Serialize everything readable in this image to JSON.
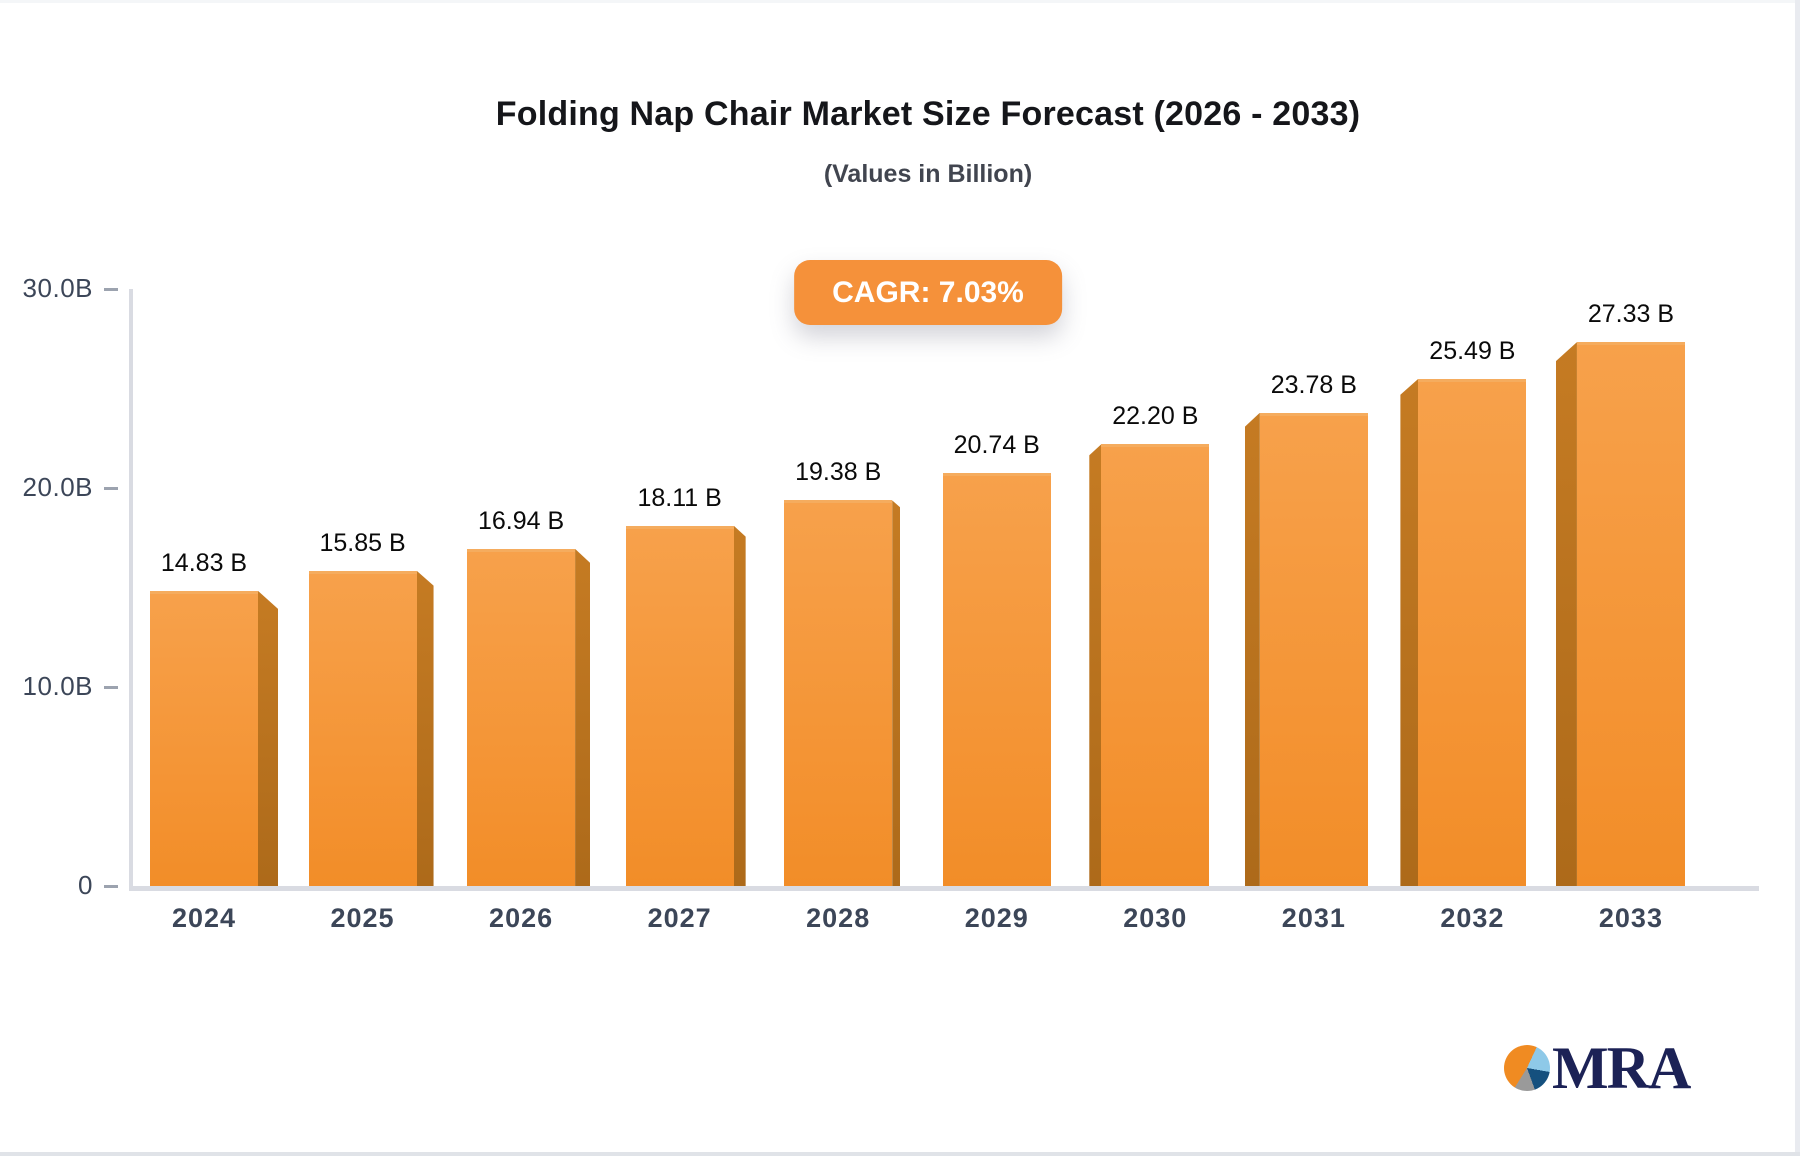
{
  "chart_data": {
    "type": "bar",
    "title": "Folding Nap Chair Market Size Forecast (2026 - 2033)",
    "subtitle": "(Values in Billion)",
    "badge": "CAGR: 7.03%",
    "categories": [
      "2024",
      "2025",
      "2026",
      "2027",
      "2028",
      "2029",
      "2030",
      "2031",
      "2032",
      "2033"
    ],
    "values": [
      14.83,
      15.85,
      16.94,
      18.11,
      19.38,
      20.74,
      22.2,
      23.78,
      25.49,
      27.33
    ],
    "bar_labels": [
      "14.83 B",
      "15.85 B",
      "16.94 B",
      "18.11 B",
      "19.38 B",
      "20.74 B",
      "22.20 B",
      "23.78 B",
      "25.49 B",
      "27.33 B"
    ],
    "y_ticks": [
      {
        "label": "30.0B",
        "value": 30
      },
      {
        "label": "20.0B",
        "value": 20
      },
      {
        "label": "10.0B",
        "value": 10
      },
      {
        "label": "0",
        "value": 0
      }
    ],
    "ylim": [
      0,
      30
    ],
    "grid": "off",
    "legend": "none",
    "colors": {
      "bar_front_top": "#F7A14B",
      "bar_front_bottom": "#F28D28",
      "bar_side_top": "#C57B23",
      "bar_side_bottom": "#AD6A1A",
      "bar_top_edge": "#F5AC5E",
      "badge_bg": "#F5913A",
      "axis_line": "#D9DBE2",
      "tick_dash": "#9CA3AF",
      "axis_text": "#3C4658",
      "value_text": "#0A0A0A"
    }
  },
  "logo": {
    "text": "MRA",
    "text_color": "#1C2256",
    "pie_colors": {
      "orange": "#F08B22",
      "light_blue": "#8EC9E8",
      "navy": "#15507E",
      "grey": "#9A9A9A"
    }
  }
}
